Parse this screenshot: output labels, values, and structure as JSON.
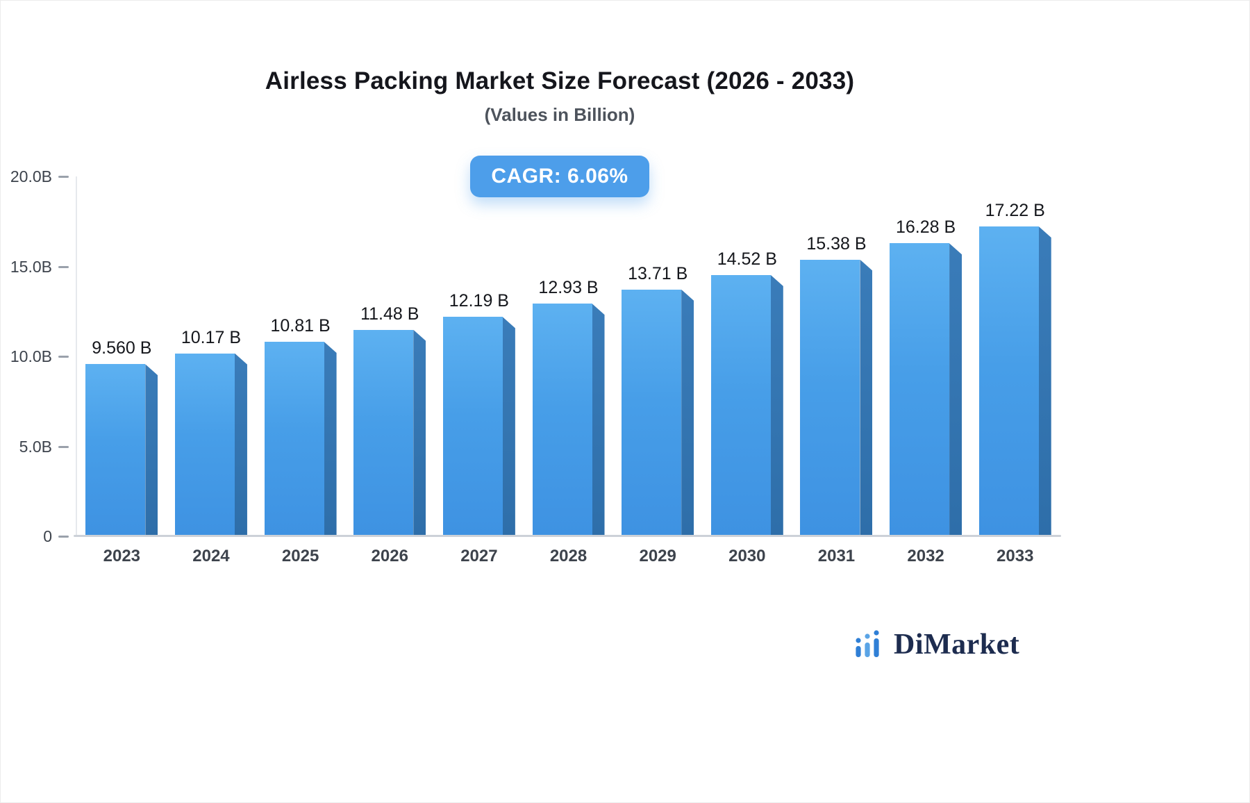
{
  "chart_data": {
    "type": "bar",
    "title": "Airless Packing Market Size Forecast (2026 - 2033)",
    "subtitle": "(Values in Billion)",
    "badge": "CAGR: 6.06%",
    "categories": [
      "2023",
      "2024",
      "2025",
      "2026",
      "2027",
      "2028",
      "2029",
      "2030",
      "2031",
      "2032",
      "2033"
    ],
    "values": [
      9.56,
      10.17,
      10.81,
      11.48,
      12.19,
      12.93,
      13.71,
      14.52,
      15.38,
      16.28,
      17.22
    ],
    "value_labels": [
      "9.560 B",
      "10.17 B",
      "10.81 B",
      "11.48 B",
      "12.19 B",
      "12.93 B",
      "13.71 B",
      "14.52 B",
      "15.38 B",
      "16.28 B",
      "17.22 B"
    ],
    "ylim": [
      0,
      20
    ],
    "yticks": [
      {
        "value": 20,
        "label": "20.0B"
      },
      {
        "value": 15,
        "label": "15.0B"
      },
      {
        "value": 10,
        "label": "10.0B"
      },
      {
        "value": 5,
        "label": "5.0B"
      },
      {
        "value": 0,
        "label": "0"
      }
    ],
    "grid": false,
    "legend_position": "none",
    "bar_color_top": "#5db1f1",
    "bar_color_bottom": "#3e92e2",
    "bar_side_color": "#2e6ea9"
  },
  "branding": {
    "logo_text": "DiMarket",
    "logo_icon": "bar-chart-dots-icon",
    "logo_icon_color": "#2f7fd6",
    "logo_text_color": "#1d2c4f"
  }
}
